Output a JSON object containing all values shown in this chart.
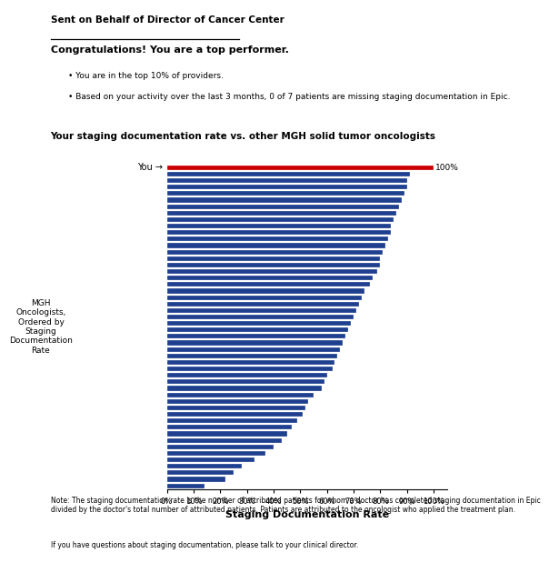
{
  "title_header": "Sent on Behalf of Director of Cancer Center",
  "congrats_line": "Congratulations! You are a top performer.",
  "bullet1": "You are in the top 10% of providers.",
  "bullet2": "Based on your activity over the last 3 months, 0 of 7 patients are missing staging documentation in Epic.",
  "chart_title": "Your staging documentation rate vs. other MGH solid tumor oncologists",
  "ylabel_text": "MGH\nOncologists,\nOrdered by\nStaging\nDocumentation\nRate",
  "xlabel_text": "Staging Documentation Rate",
  "you_label": "You →",
  "you_value": 100,
  "you_annotation": "100%",
  "peer_values": [
    91,
    90,
    90,
    89,
    88,
    87,
    86,
    85,
    84,
    84,
    83,
    82,
    81,
    80,
    80,
    79,
    77,
    76,
    74,
    73,
    72,
    71,
    70,
    69,
    68,
    67,
    66,
    65,
    64,
    63,
    62,
    60,
    59,
    58,
    55,
    53,
    52,
    51,
    49,
    47,
    45,
    43,
    40,
    37,
    33,
    28,
    25,
    22,
    14
  ],
  "bar_color_you": "#cc0000",
  "bar_color_peers": "#1f3f8f",
  "bg_color": "#ffffff",
  "note_text": "Note: The staging documentation rate is the number of attributed patients for whom a doctor has completed staging documentation in Epic\ndivided by the doctor's total number of attributed patients. Patients are attributed to the oncologist who applied the treatment plan.",
  "footnote_text": "If you have questions about staging documentation, please talk to your clinical director.",
  "xticks": [
    0,
    10,
    20,
    30,
    40,
    50,
    60,
    70,
    80,
    90,
    100
  ],
  "xtick_labels": [
    "0%",
    "10%",
    "20%",
    "30%",
    "40%",
    "50%",
    "60%",
    "70%",
    "80%",
    "90%",
    "100%"
  ]
}
